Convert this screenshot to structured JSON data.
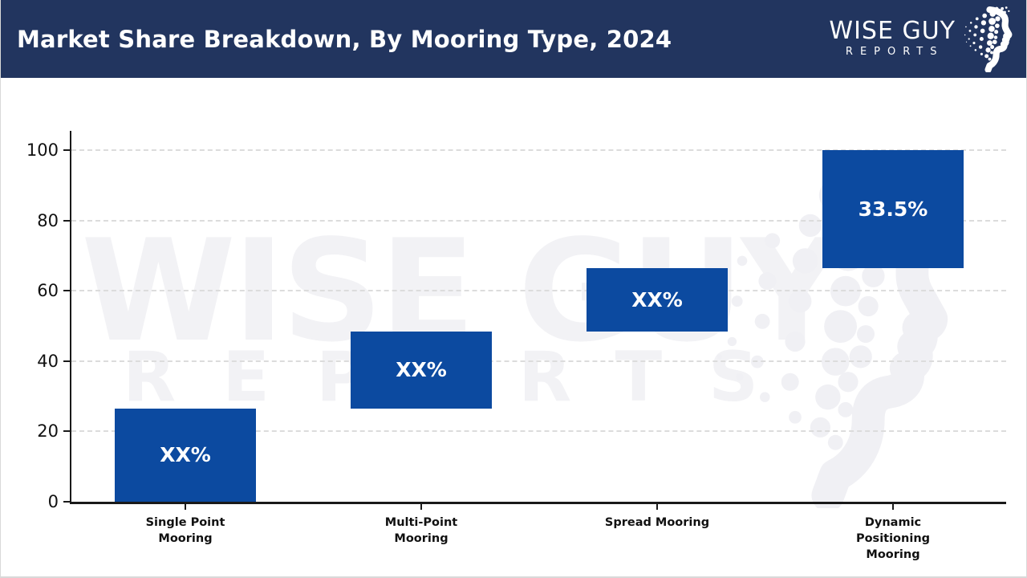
{
  "header": {
    "title": "Market Share Breakdown, By Mooring Type, 2024",
    "background_color": "#22355F",
    "logo": {
      "brand": "WISE GUY",
      "sub": "REPORTS"
    }
  },
  "watermark": {
    "brand": "WISE GUY",
    "sub": "REPORTS"
  },
  "chart_data": {
    "type": "bar",
    "variant": "floating-waterfall-segments",
    "title": "Market Share Breakdown, By Mooring Type, 2024",
    "categories": [
      {
        "name": "Single Point Mooring",
        "lines": [
          "Single Point",
          "Mooring"
        ]
      },
      {
        "name": "Multi-Point Mooring",
        "lines": [
          "Multi-Point",
          "Mooring"
        ]
      },
      {
        "name": "Spread Mooring",
        "lines": [
          "Spread Mooring"
        ]
      },
      {
        "name": "Dynamic Positioning Mooring",
        "lines": [
          "Dynamic",
          "Positioning",
          "Mooring"
        ]
      }
    ],
    "segments": [
      {
        "category": "Single Point Mooring",
        "start": 0,
        "end": 26.5,
        "label": "XX%"
      },
      {
        "category": "Multi-Point Mooring",
        "start": 26.5,
        "end": 48.5,
        "label": "XX%"
      },
      {
        "category": "Spread Mooring",
        "start": 48.5,
        "end": 66.5,
        "label": "XX%"
      },
      {
        "category": "Dynamic Positioning Mooring",
        "start": 66.5,
        "end": 100,
        "label": "33.5%"
      }
    ],
    "xlabel": "",
    "ylabel": "",
    "ylim": [
      0,
      105.5
    ],
    "yticks": [
      0,
      20,
      40,
      60,
      80,
      100
    ],
    "grid": {
      "horizontal": true,
      "style": "dashed",
      "color": "#DCDCDC"
    },
    "legend": "none",
    "colors": {
      "bar": "#0C4AA0",
      "bar_label": "#FFFFFF",
      "axis": "#1A1A1A",
      "tick_label": "#111111",
      "category_label": "#111111",
      "watermark": "#F2F2F5"
    }
  }
}
